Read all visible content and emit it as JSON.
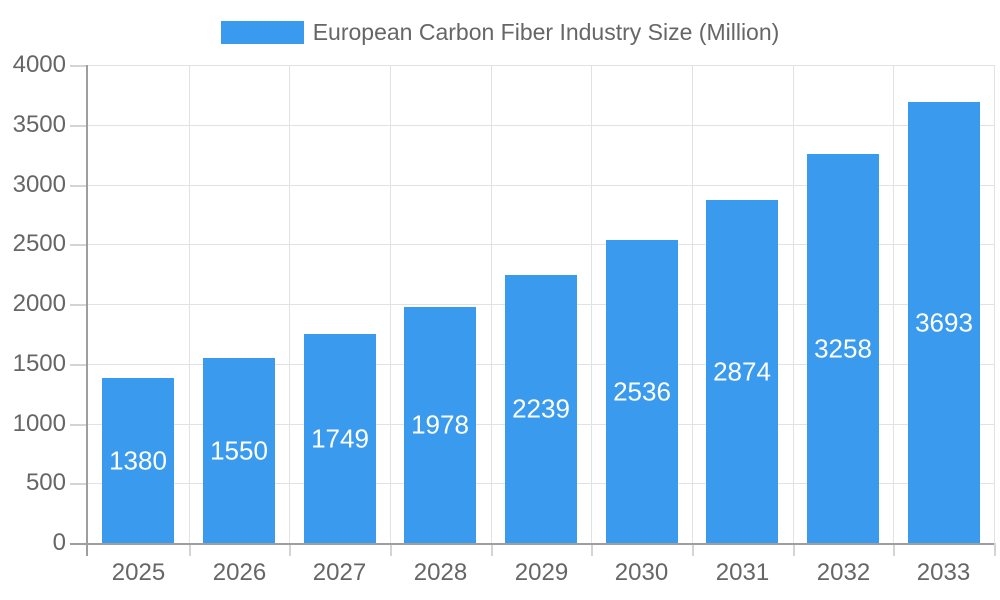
{
  "chart_data": {
    "type": "bar",
    "title": "European Carbon Fiber Industry Size (Million)",
    "categories": [
      "2025",
      "2026",
      "2027",
      "2028",
      "2029",
      "2030",
      "2031",
      "2032",
      "2033"
    ],
    "values": [
      1380,
      1550,
      1749,
      1978,
      2239,
      2536,
      2874,
      3258,
      3693
    ],
    "ylim": [
      0,
      4000
    ],
    "ytick_step": 500,
    "yticks": [
      0,
      500,
      1000,
      1500,
      2000,
      2500,
      3000,
      3500,
      4000
    ],
    "grid": true,
    "legend_position": "top",
    "colors": {
      "bar": "#3A9BEE",
      "bar_label": "#FFFFFF",
      "axis_text": "#666666",
      "legend_text": "#666666",
      "grid_line": "#E2E2E2",
      "tick_mark": "#D4D4D4",
      "axis_line": "#9E9E9E",
      "background": "#FFFFFF"
    }
  }
}
